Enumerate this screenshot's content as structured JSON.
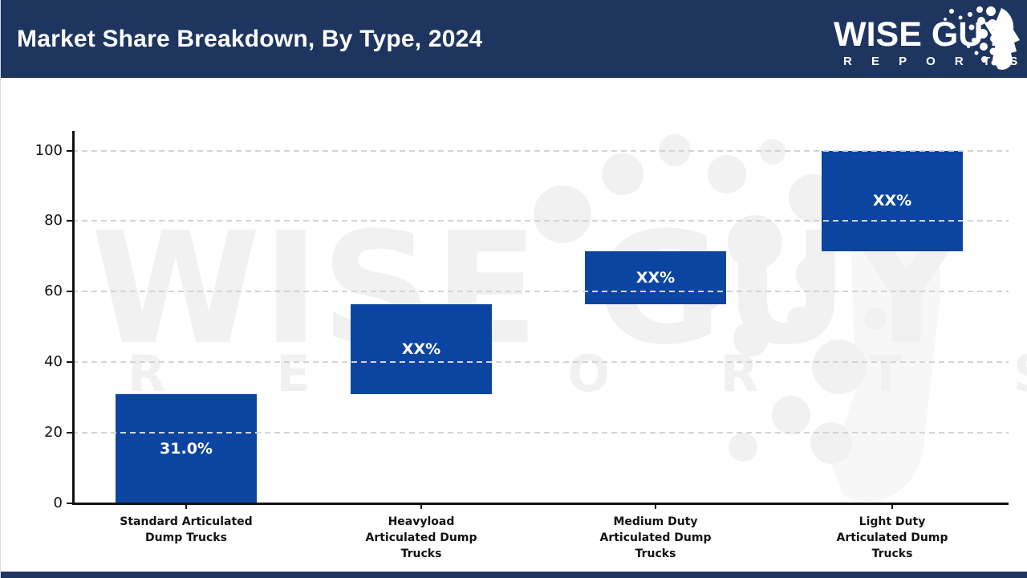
{
  "header": {
    "title": "Market Share Breakdown, By Type, 2024",
    "logo": {
      "line1": "WISE GUY",
      "line2": "R E P O R T S"
    }
  },
  "watermark": {
    "line1": "WISE GUY",
    "line2": "R E P O R T S"
  },
  "colors": {
    "header_bg": "#1e3560",
    "footer_bg": "#1e3560",
    "bar": "#0b45a1",
    "bar_label": "#ffffff",
    "grid": "#d4d4d4",
    "axis": "#111111",
    "watermark": "#f1f1f1"
  },
  "chart_data": {
    "type": "bar",
    "subtype": "waterfall",
    "title": "Market Share Breakdown, By Type, 2024",
    "categories": [
      "Standard Articulated Dump Trucks",
      "Heavyload Articulated Dump Trucks",
      "Medium Duty Articulated Dump Trucks",
      "Light Duty Articulated Dump Trucks"
    ],
    "bars": [
      {
        "start": 0,
        "end": 31.0,
        "value": 31.0,
        "label": "31.0%"
      },
      {
        "start": 31.0,
        "end": 56.5,
        "value": 25.5,
        "label": "XX%"
      },
      {
        "start": 56.5,
        "end": 71.5,
        "value": 15.0,
        "label": "XX%"
      },
      {
        "start": 71.5,
        "end": 100.0,
        "value": 28.5,
        "label": "XX%"
      }
    ],
    "xlabel": "",
    "ylabel": "",
    "ylim": [
      0,
      105
    ],
    "yticks": [
      0,
      20,
      40,
      60,
      80,
      100
    ],
    "grid": true,
    "grid_style": "dashed",
    "legend": "none"
  }
}
